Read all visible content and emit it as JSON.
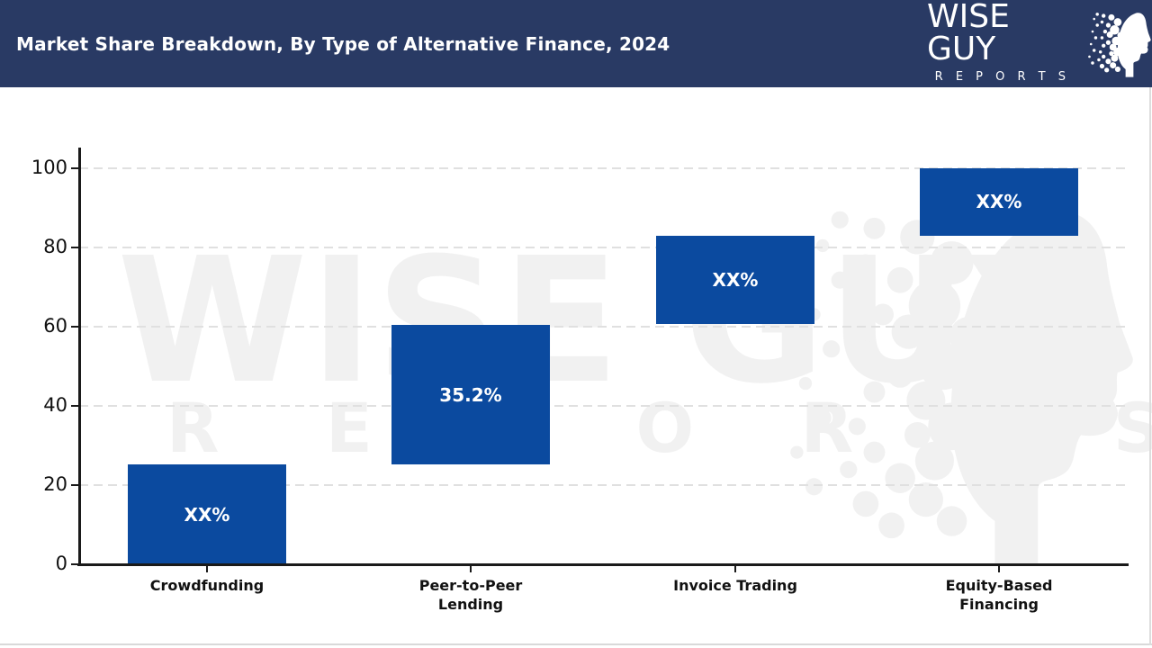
{
  "header": {
    "title": "Market Share Breakdown, By Type of Alternative Finance, 2024",
    "logo_line1": "WISE GUY",
    "logo_line2": "R E P O R T S"
  },
  "watermark": {
    "line1": "WISE GUY",
    "line2": "R E P O R T S"
  },
  "chart_data": {
    "type": "bar",
    "variant": "waterfall",
    "title": "Market Share Breakdown, By Type of Alternative Finance, 2024",
    "categories": [
      "Crowdfunding",
      "Peer-to-Peer Lending",
      "Invoice Trading",
      "Equity-Based Financing"
    ],
    "bars": [
      {
        "category": "Crowdfunding",
        "label": "XX%",
        "start": 0,
        "end": 25.2
      },
      {
        "category": "Peer-to-Peer Lending",
        "label": "35.2%",
        "start": 25.2,
        "end": 60.4
      },
      {
        "category": "Invoice Trading",
        "label": "XX%",
        "start": 60.6,
        "end": 83
      },
      {
        "category": "Equity-Based Financing",
        "label": "XX%",
        "start": 83,
        "end": 100
      }
    ],
    "ylim": [
      0,
      100
    ],
    "yticks": [
      0,
      20,
      40,
      60,
      80,
      100
    ],
    "xlabel": "",
    "ylabel": "",
    "grid": "horizontal-dashed",
    "legend": "none",
    "bar_color": "#0B4A9F"
  },
  "colors": {
    "header_bg": "#293A64",
    "bar": "#0B4A9F",
    "grid": "#e0e0e0",
    "axis": "#1a1a1a",
    "watermark": "#f1f1f1",
    "label_text": "#ffffff"
  }
}
